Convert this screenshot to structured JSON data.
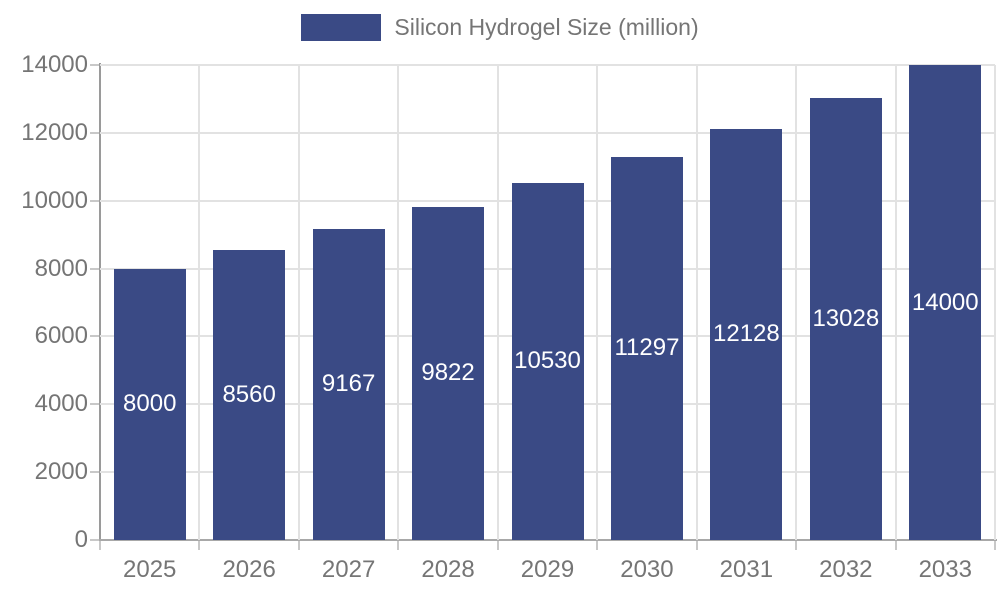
{
  "legend": {
    "label": "Silicon Hydrogel Size (million)"
  },
  "colors": {
    "bar": "#3a4a85",
    "axis_text": "#757575",
    "grid": "#e2e2e2",
    "y_axis_line": "#9a9a9a",
    "x_axis_line": "#a8a8a8",
    "tick": "#c8c8c8",
    "value_label": "#ffffff"
  },
  "chart_data": {
    "type": "bar",
    "title": "Silicon Hydrogel Size (million)",
    "series_name": "Silicon Hydrogel Size (million)",
    "categories": [
      "2025",
      "2026",
      "2027",
      "2028",
      "2029",
      "2030",
      "2031",
      "2032",
      "2033"
    ],
    "values": [
      8000,
      8560,
      9167,
      9822,
      10530,
      11297,
      12128,
      13028,
      14000
    ],
    "xlabel": "",
    "ylabel": "",
    "ylim": [
      0,
      14000
    ],
    "y_ticks": [
      0,
      2000,
      4000,
      6000,
      8000,
      10000,
      12000,
      14000
    ],
    "grid": true,
    "legend_position": "top-center",
    "value_label_position": "inside-center"
  }
}
